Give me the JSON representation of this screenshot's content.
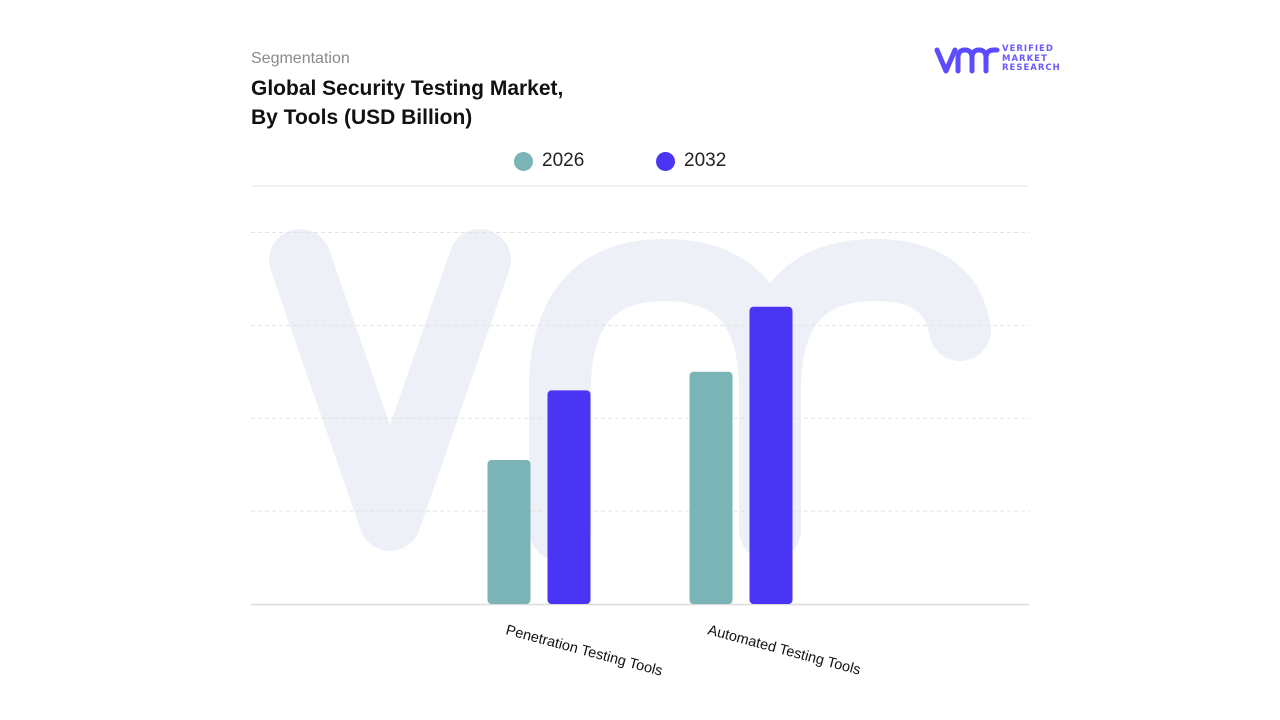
{
  "header": {
    "eyebrow": "Segmentation",
    "title_line1": "Global Security Testing Market,",
    "title_line2": "By Tools (USD Billion)"
  },
  "logo": {
    "mark": "vmr",
    "line1": "VERIFIED",
    "line2": "MARKET",
    "line3": "RESEARCH",
    "color": "#5b4cff"
  },
  "chart_data": {
    "type": "bar",
    "title": "Global Security Testing Market, By Tools (USD Billion)",
    "categories": [
      "Penetration Testing Tools",
      "Automated Testing Tools"
    ],
    "series": [
      {
        "name": "2026",
        "color": "#7ab4b6",
        "values": [
          3.1,
          5.0
        ]
      },
      {
        "name": "2032",
        "color": "#4b35f5",
        "values": [
          4.6,
          6.4
        ]
      }
    ],
    "ylim": [
      0,
      9
    ],
    "grid": true,
    "legend": "top-center",
    "tick_labels_rotation": 15
  },
  "watermark": {
    "icon": "vmr-watermark-icon",
    "color": "#eef0f7"
  }
}
